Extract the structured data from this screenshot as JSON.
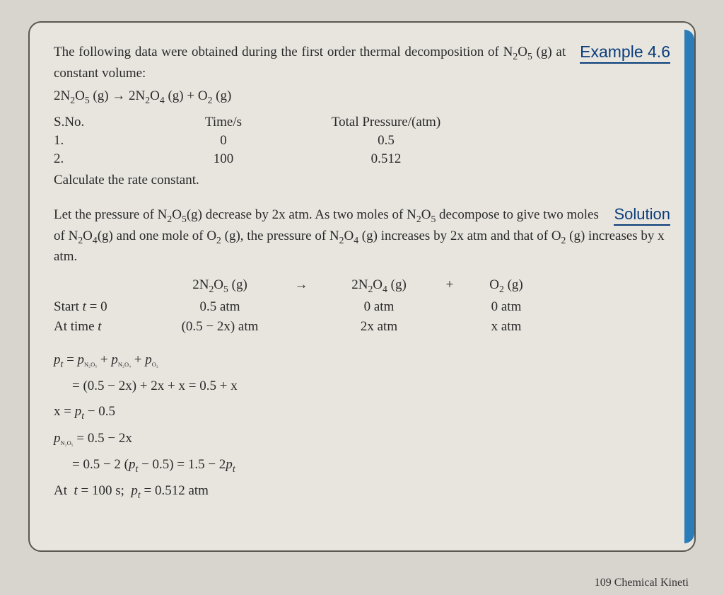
{
  "example": {
    "label": "Example 4.6",
    "intro": "The following data were obtained during the first order thermal decomposition of N₂O₅ (g) at constant volume:",
    "equation": "2N₂O₅ (g) → 2N₂O₄ (g) + O₂ (g)",
    "table": {
      "headers": [
        "S.No.",
        "Time/s",
        "Total Pressure/(atm)"
      ],
      "rows": [
        [
          "1.",
          "0",
          "0.5"
        ],
        [
          "2.",
          "100",
          "0.512"
        ]
      ]
    },
    "prompt": "Calculate the rate constant."
  },
  "solution": {
    "label": "Solution",
    "para": "Let the pressure of N₂O₅(g) decrease by 2x atm. As two moles of N₂O₅ decompose to give two moles of N₂O₄(g) and one mole of O₂ (g), the pressure of N₂O₄ (g) increases by 2x atm and that of O₂ (g) increases by x atm.",
    "reaction": {
      "species": [
        "2N₂O₅ (g)",
        "→",
        "2N₂O₄ (g)",
        "+",
        "O₂ (g)"
      ],
      "rows": [
        {
          "label": "Start t = 0",
          "cells": [
            "0.5 atm",
            "",
            "0 atm",
            "",
            "0 atm"
          ]
        },
        {
          "label": "At time t",
          "cells": [
            "(0.5 − 2x) atm",
            "",
            "2x atm",
            "",
            "x atm"
          ]
        }
      ]
    },
    "math": [
      "pₜ = p_N₂O₅ + p_N₂O₄ + p_O₂",
      "   = (0.5 − 2x) + 2x + x = 0.5 + x",
      "x = pₜ − 0.5",
      "p_N₂O₅ = 0.5 − 2x",
      "        = 0.5 − 2 (pₜ − 0.5) = 1.5 − 2pₜ",
      "At  t = 100 s;  pₜ = 0.512 atm"
    ]
  },
  "footer": "109  Chemical Kineti",
  "colors": {
    "accent_blue": "#0a3d7a",
    "side_bar": "#2a7db8",
    "page_bg": "#e8e5df",
    "outer_bg": "#d8d4ce",
    "text": "#2a2a2a"
  }
}
